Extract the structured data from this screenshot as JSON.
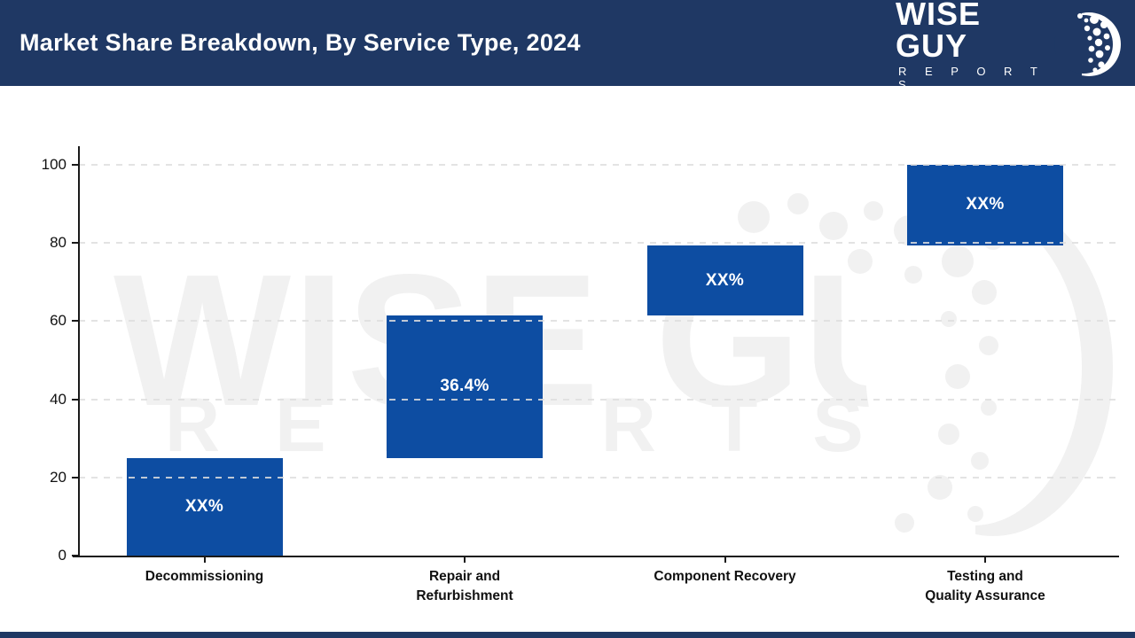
{
  "header": {
    "title": "Market Share Breakdown, By Service Type, 2024"
  },
  "logo": {
    "line1": "WISE GUY",
    "line2": "R E P O R T S"
  },
  "watermark": {
    "line1": "WISE GUY",
    "line2": "REPORTS"
  },
  "colors": {
    "header_bg": "#1f3864",
    "bar_blue": "#0d4da2",
    "watermark_gray": "#f1f1f1",
    "gridline_gray": "#e3e3e3",
    "axis_black": "#1a1a1a"
  },
  "chart_data": {
    "type": "bar",
    "subtype": "waterfall",
    "title": "Market Share Breakdown, By Service Type, 2024",
    "xlabel": "",
    "ylabel": "",
    "ylim": [
      0,
      100
    ],
    "yticks": [
      0,
      20,
      40,
      60,
      80,
      100
    ],
    "grid": true,
    "legend": "none",
    "bar_color": "#0d4da2",
    "categories": [
      "Decommissioning",
      "Repair and\nRefurbishment",
      "Component Recovery",
      "Testing and\nQuality Assurance"
    ],
    "segments": [
      {
        "category": "Decommissioning",
        "label": "XX%",
        "start": 0,
        "end": 25
      },
      {
        "category": "Repair and Refurbishment",
        "label": "36.4%",
        "start": 25,
        "end": 61.4
      },
      {
        "category": "Component Recovery",
        "label": "XX%",
        "start": 61.4,
        "end": 79.4
      },
      {
        "category": "Testing and Quality Assurance",
        "label": "XX%",
        "start": 79.4,
        "end": 100
      }
    ]
  }
}
